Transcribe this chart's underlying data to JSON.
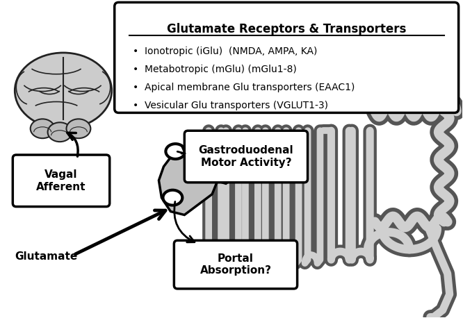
{
  "bg_color": "#ffffff",
  "fig_width": 6.66,
  "fig_height": 4.58,
  "dpi": 100,
  "box_title": "Glutamate Receptors & Transporters",
  "bullet_lines": [
    "Ionotropic (iGlu)  (NMDA, AMPA, KA)",
    "Metabotropic (mGlu) (mGlu1-8)",
    "Apical membrane Glu transporters (EAAC1)",
    "Vesicular Glu transporters (VGLUT1-3)"
  ],
  "label_vagal": "Vagal\nAfferent",
  "label_glutamate": "Glutamate",
  "label_gastro": "Gastroduodenal\nMotor Activity?",
  "label_portal": "Portal\nAbsorption?",
  "intestine_color": "#d0d0d0",
  "intestine_edge": "#555555",
  "brain_fill": "#cccccc",
  "brain_edge": "#222222",
  "stomach_fill": "#c0c0c0",
  "ganglion_fill": "#ffffff"
}
